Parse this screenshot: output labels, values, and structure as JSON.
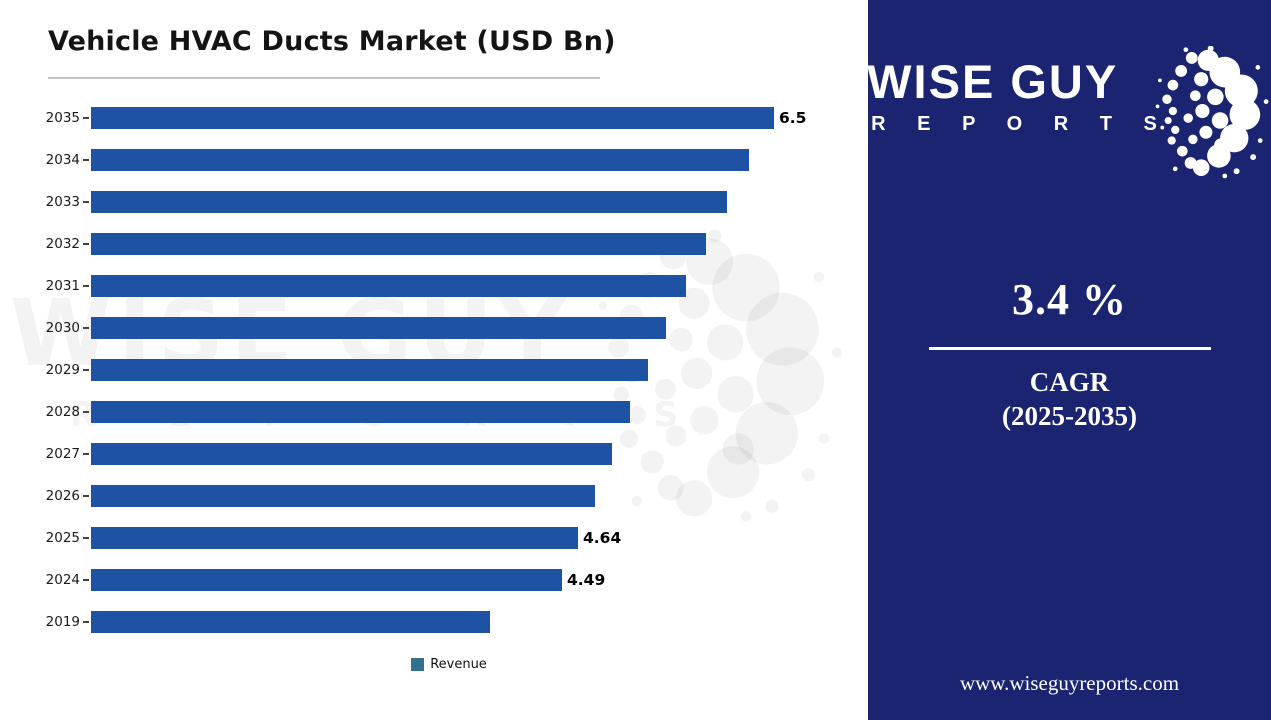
{
  "chart_data": {
    "type": "bar",
    "orientation": "horizontal",
    "title": "Vehicle HVAC Ducts Market (USD Bn)",
    "series_name": "Revenue",
    "categories": [
      "2035",
      "2034",
      "2033",
      "2032",
      "2031",
      "2030",
      "2029",
      "2028",
      "2027",
      "2026",
      "2025",
      "2024",
      "2019"
    ],
    "values": [
      6.5,
      6.27,
      6.06,
      5.86,
      5.67,
      5.48,
      5.3,
      5.13,
      4.96,
      4.8,
      4.64,
      4.49,
      3.8
    ],
    "data_labels": [
      "6.5",
      "",
      "",
      "",
      "",
      "",
      "",
      "",
      "",
      "",
      "4.64",
      "4.49",
      ""
    ],
    "xlabel": "",
    "ylabel": "",
    "xlim": [
      0,
      7
    ],
    "grid": false,
    "legend_position": "bottom",
    "bar_color": "#1E52A2",
    "legend_color": "#31708F"
  },
  "watermark": {
    "line1": "WISE GUY",
    "line2": "R E P O R T S"
  },
  "sidebar": {
    "background": "#1A2470",
    "logo_text": "WISE GUY",
    "logo_subtext": "R E P O R T S",
    "cagr_value": "3.4 %",
    "cagr_label": "CAGR",
    "cagr_period": "(2025-2035)",
    "website": "www.wiseguyreports.com"
  }
}
